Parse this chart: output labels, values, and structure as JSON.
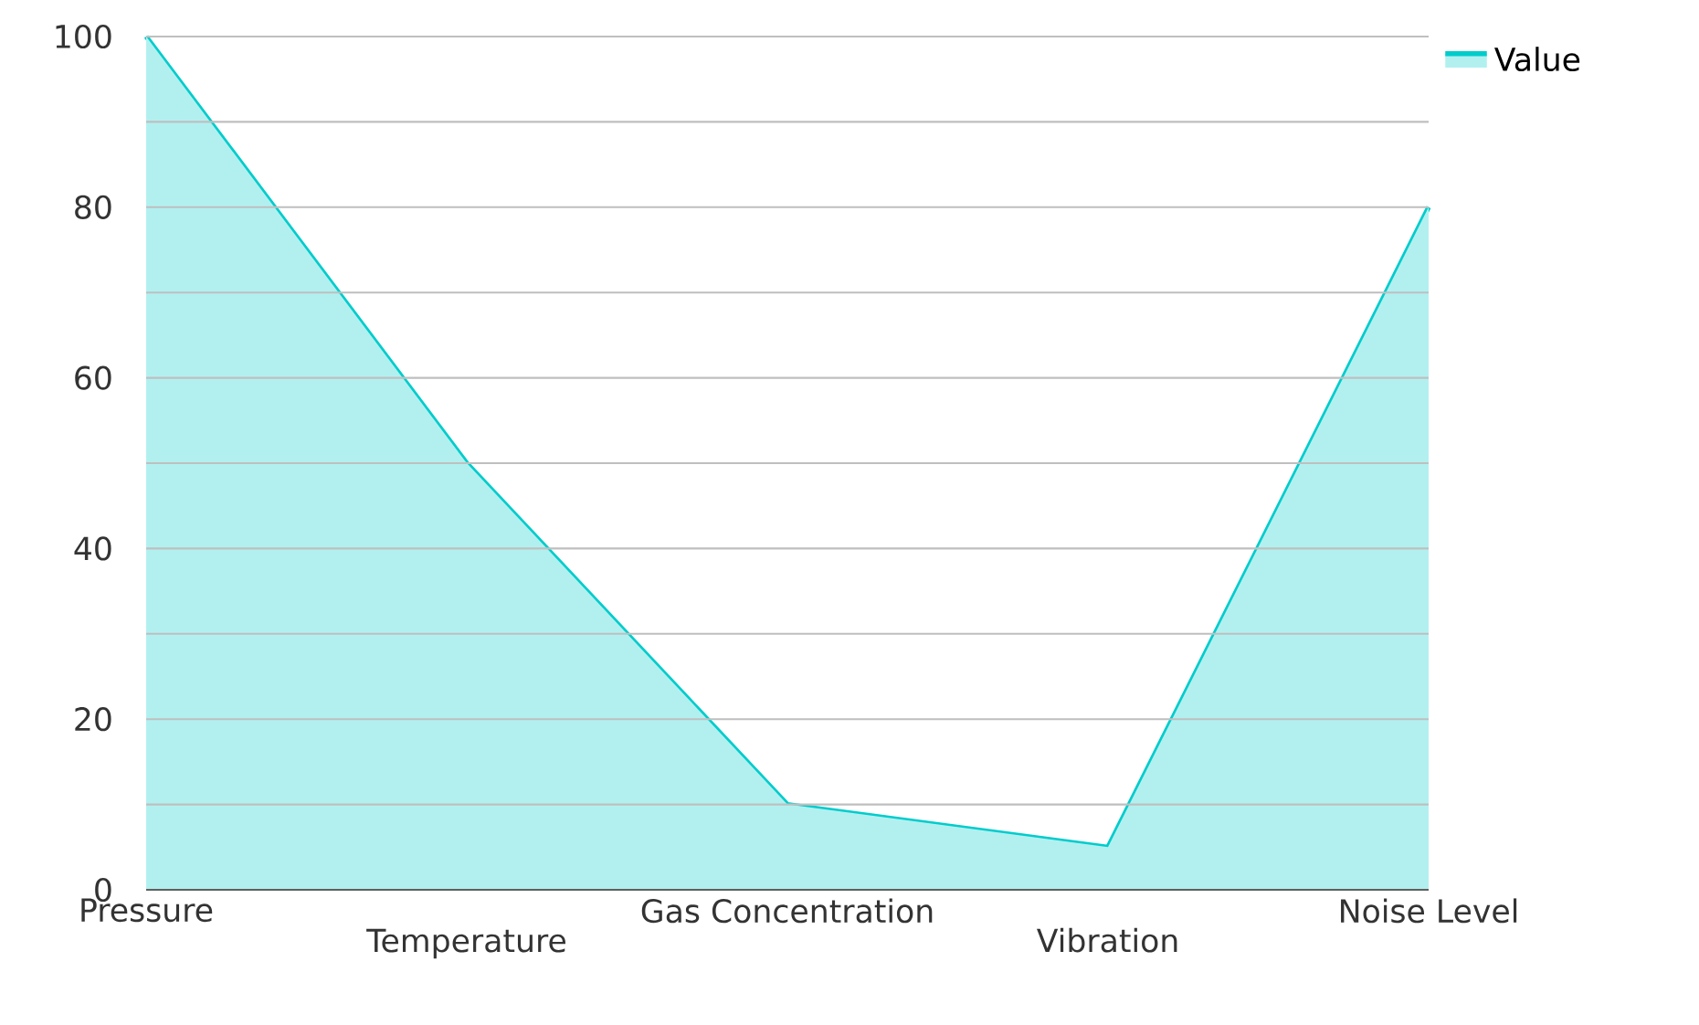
{
  "chart_data": {
    "type": "area",
    "categories": [
      "Pressure",
      "Temperature",
      "Gas Concentration",
      "Vibration",
      "Noise Level"
    ],
    "series": [
      {
        "name": "Value",
        "color": "#00cccc",
        "values": [
          100,
          50,
          10,
          5,
          80
        ]
      }
    ],
    "ylim": [
      0,
      100
    ],
    "yticks": [
      0,
      {
        "value": 10,
        "label": null
      },
      20,
      {
        "value": 30,
        "label": null
      },
      40,
      {
        "value": 50,
        "label": null
      },
      60,
      {
        "value": 70,
        "label": null
      },
      80,
      {
        "value": 90,
        "label": null
      },
      100
    ],
    "grid": "y",
    "legend": "top right"
  }
}
